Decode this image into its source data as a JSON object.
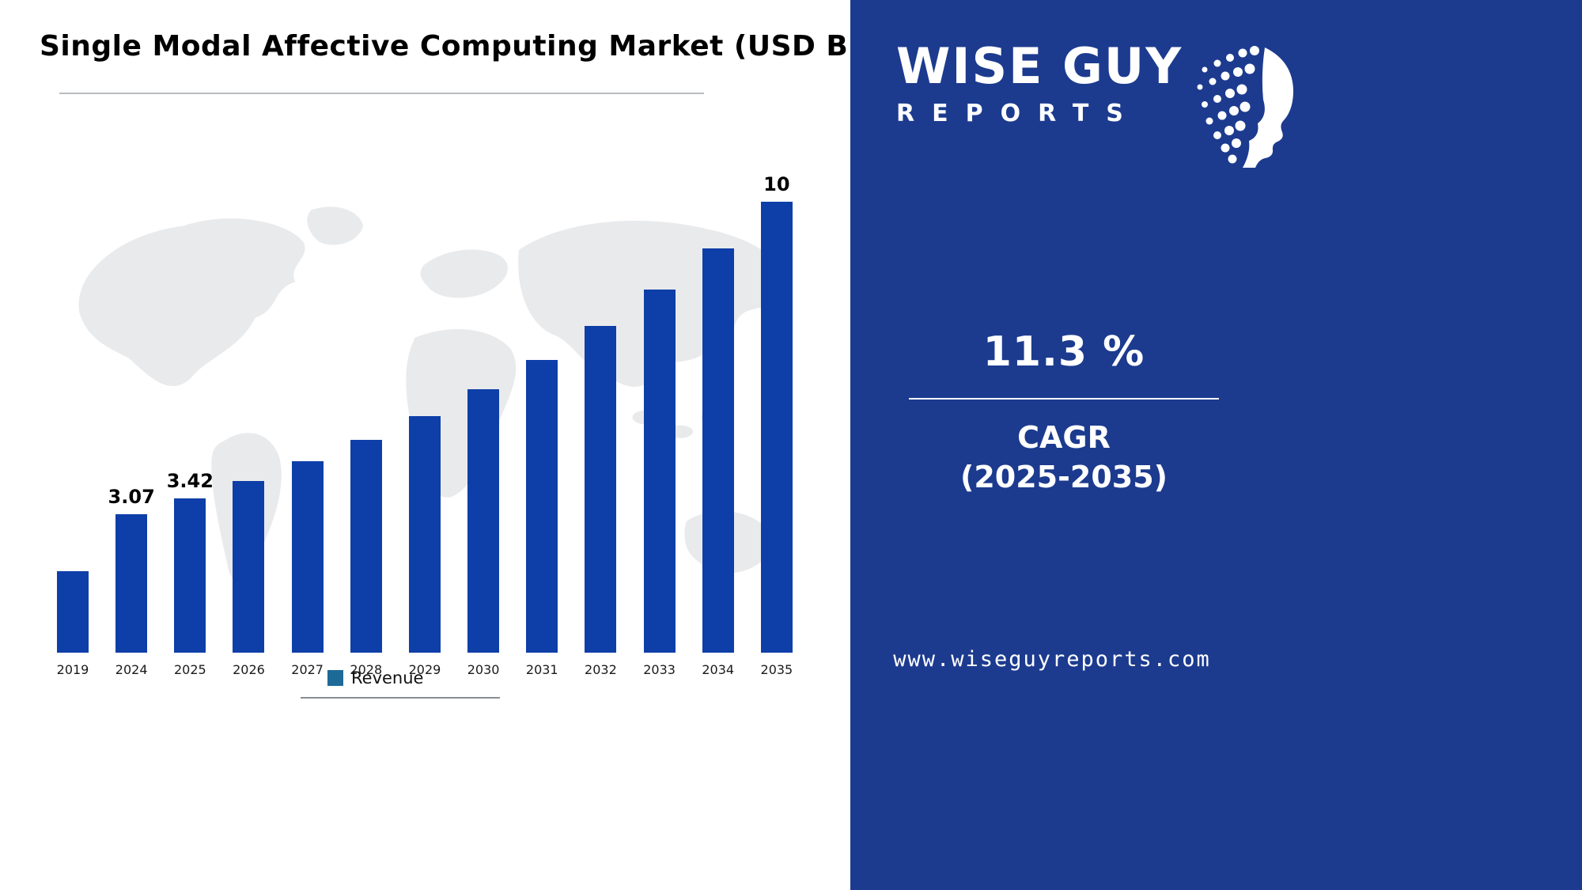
{
  "title": "Single Modal Affective Computing Market (USD Bn)",
  "legend": {
    "label": "Revenue",
    "swatch_color": "#1d6a96"
  },
  "brand": {
    "logo_line1": "WISE GUY",
    "logo_line2": "REPORTS",
    "cagr_value": "11.3 %",
    "cagr_label": "CAGR",
    "cagr_range": "(2025-2035)",
    "website": "www.wiseguyreports.com",
    "panel_color": "#1c3b8f"
  },
  "chart_data": {
    "type": "bar",
    "title": "Single Modal Affective Computing Market (USD Bn)",
    "xlabel": "",
    "ylabel": "Revenue (USD Bn)",
    "categories": [
      "2019",
      "2024",
      "2025",
      "2026",
      "2027",
      "2028",
      "2029",
      "2030",
      "2031",
      "2032",
      "2033",
      "2034",
      "2035"
    ],
    "values": [
      1.8,
      3.07,
      3.42,
      3.81,
      4.24,
      4.72,
      5.25,
      5.84,
      6.5,
      7.24,
      8.06,
      8.97,
      10
    ],
    "bar_labels": {
      "2024": "3.07",
      "2025": "3.42",
      "2035": "10"
    },
    "bar_color": "#0e3fa8",
    "ylim": [
      0,
      10
    ],
    "grid": false,
    "legend": [
      "Revenue"
    ],
    "legend_position": "bottom"
  }
}
